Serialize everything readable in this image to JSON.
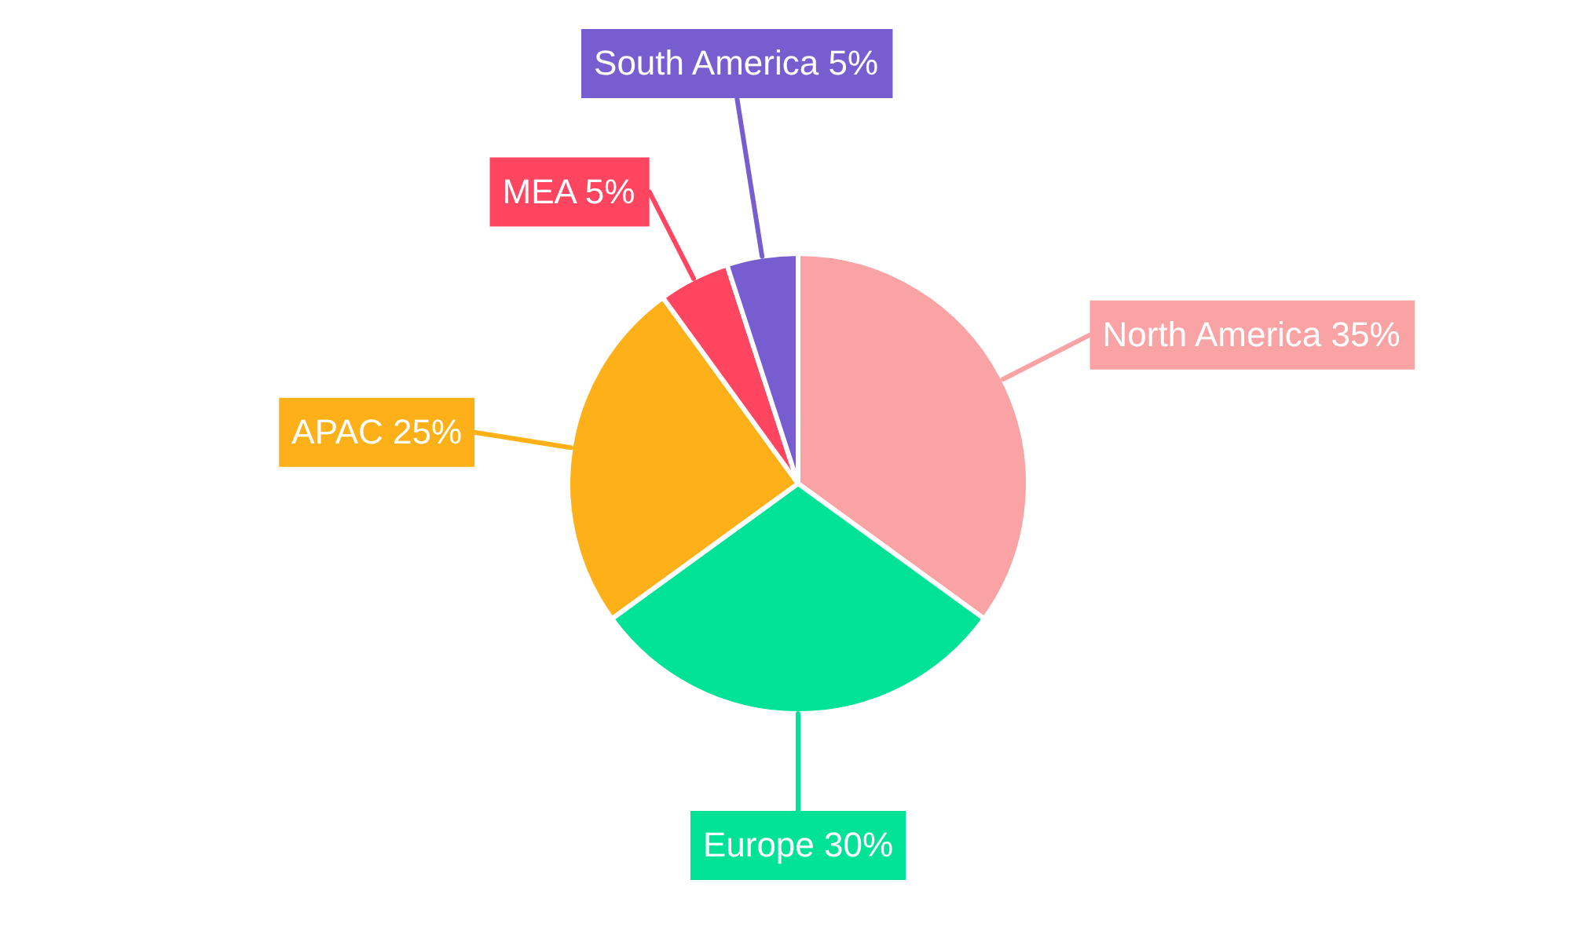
{
  "chart_data": {
    "type": "pie",
    "categories": [
      "North America",
      "Europe",
      "APAC",
      "MEA",
      "South America"
    ],
    "values": [
      35,
      30,
      25,
      5,
      5
    ],
    "value_labels": [
      "35%",
      "30%",
      "25%",
      "5%",
      "5%"
    ],
    "colors": [
      "#f9a3a4",
      "#00e396",
      "#feb019",
      "#ff4560",
      "#775dd0"
    ],
    "legend": false
  }
}
